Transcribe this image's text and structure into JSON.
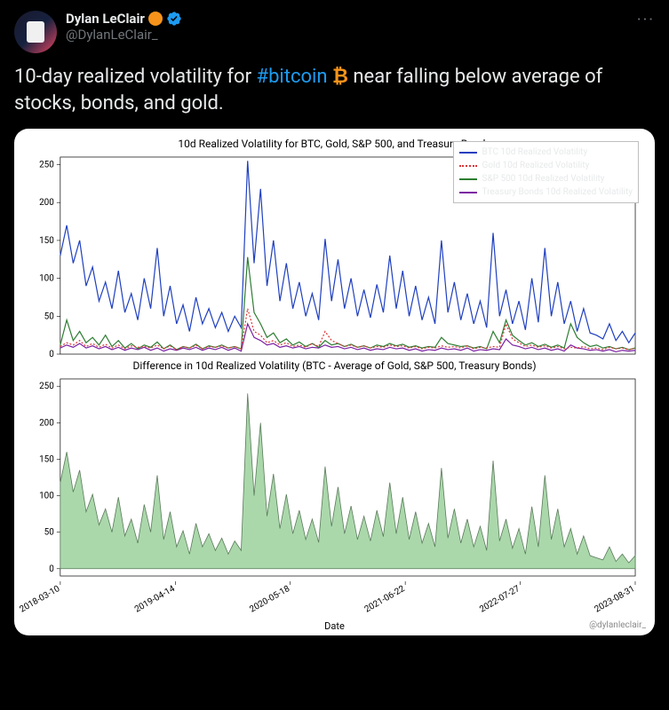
{
  "tweet": {
    "display_name": "Dylan LeClair",
    "handle": "@DylanLeClair_",
    "text_pre": "10-day realized volatility for ",
    "hashtag": "#bitcoin",
    "btc_glyph": "₿",
    "text_post": "  near falling below average of stocks, bonds, and gold.",
    "more": "···",
    "watermark": "@dylanleclair_"
  },
  "colors": {
    "background": "#000000",
    "text": "#e7e9ea",
    "muted": "#71767b",
    "link": "#1d9bf0",
    "btc_orange": "#f7931a",
    "card_bg": "#ffffff",
    "axis": "#000000"
  },
  "chart_top": {
    "type": "line",
    "title": "10d Realized Volatility for BTC, Gold, S&P 500, and Treasury Bonds",
    "ylim": [
      0,
      260
    ],
    "yticks": [
      0,
      50,
      100,
      150,
      200,
      250
    ],
    "xlabels": [
      "2018-03-10",
      "2019-04-14",
      "2020-05-18",
      "2021-06-22",
      "2022-07-27",
      "2023-08-31"
    ],
    "legend": [
      {
        "label": "BTC 10d Realized Volatility",
        "color": "#1f3fbf",
        "dash": "none"
      },
      {
        "label": "Gold 10d Realized Volatility",
        "color": "#d93636",
        "dash": "2,2"
      },
      {
        "label": "S&P 500 10d Realized Volatility",
        "color": "#2e7d32",
        "dash": "none"
      },
      {
        "label": "Treasury Bonds 10d Realized Volatility",
        "color": "#7b1fa2",
        "dash": "none"
      }
    ],
    "series": {
      "btc": {
        "color": "#1f3fbf",
        "dash": "none",
        "values": [
          130,
          170,
          120,
          150,
          90,
          115,
          70,
          95,
          60,
          110,
          55,
          80,
          45,
          100,
          60,
          140,
          50,
          90,
          40,
          65,
          30,
          75,
          40,
          60,
          35,
          55,
          30,
          50,
          35,
          255,
          120,
          218,
          90,
          150,
          70,
          120,
          60,
          95,
          50,
          80,
          45,
          152,
          70,
          125,
          60,
          100,
          50,
          85,
          48,
          92,
          55,
          130,
          60,
          110,
          50,
          90,
          45,
          75,
          40,
          150,
          55,
          95,
          45,
          80,
          40,
          70,
          35,
          160,
          50,
          85,
          40,
          70,
          32,
          100,
          42,
          140,
          50,
          95,
          40,
          70,
          30,
          60,
          28,
          25,
          20,
          40,
          18,
          30,
          15,
          28
        ]
      },
      "gold": {
        "color": "#d93636",
        "dash": "2,2",
        "values": [
          10,
          15,
          12,
          18,
          10,
          14,
          9,
          13,
          8,
          12,
          7,
          11,
          9,
          10,
          8,
          12,
          7,
          11,
          6,
          10,
          8,
          12,
          7,
          10,
          9,
          11,
          8,
          10,
          7,
          60,
          30,
          25,
          15,
          18,
          12,
          15,
          10,
          12,
          9,
          14,
          10,
          30,
          18,
          14,
          10,
          12,
          9,
          11,
          8,
          10,
          9,
          12,
          10,
          11,
          8,
          10,
          7,
          9,
          8,
          11,
          9,
          10,
          8,
          11,
          7,
          9,
          8,
          10,
          9,
          40,
          20,
          15,
          10,
          12,
          9,
          11,
          8,
          10,
          7,
          9,
          8,
          10,
          7,
          8,
          6,
          9,
          7,
          8,
          6,
          8
        ]
      },
      "sp500": {
        "color": "#2e7d32",
        "dash": "none",
        "values": [
          12,
          45,
          18,
          30,
          15,
          22,
          12,
          25,
          10,
          18,
          8,
          14,
          7,
          12,
          9,
          16,
          7,
          12,
          6,
          10,
          8,
          13,
          7,
          11,
          9,
          12,
          8,
          10,
          7,
          128,
          55,
          40,
          22,
          28,
          15,
          20,
          12,
          16,
          10,
          14,
          9,
          18,
          12,
          14,
          10,
          13,
          9,
          11,
          8,
          12,
          10,
          14,
          11,
          13,
          9,
          11,
          8,
          10,
          9,
          22,
          14,
          12,
          10,
          11,
          8,
          10,
          7,
          30,
          15,
          45,
          25,
          18,
          12,
          15,
          10,
          13,
          9,
          12,
          8,
          40,
          22,
          15,
          10,
          12,
          8,
          10,
          7,
          9,
          6,
          8
        ]
      },
      "bonds": {
        "color": "#7b1fa2",
        "dash": "none",
        "values": [
          8,
          12,
          9,
          14,
          8,
          11,
          7,
          10,
          6,
          9,
          5,
          8,
          6,
          9,
          5,
          8,
          4,
          7,
          5,
          8,
          6,
          9,
          5,
          8,
          6,
          9,
          5,
          8,
          4,
          40,
          22,
          18,
          12,
          14,
          9,
          11,
          8,
          10,
          7,
          9,
          8,
          12,
          9,
          10,
          7,
          9,
          6,
          8,
          5,
          7,
          6,
          9,
          7,
          8,
          5,
          7,
          4,
          6,
          5,
          8,
          6,
          7,
          5,
          8,
          4,
          6,
          5,
          7,
          6,
          20,
          12,
          10,
          7,
          9,
          6,
          8,
          5,
          7,
          4,
          12,
          8,
          7,
          5,
          6,
          4,
          6,
          3,
          5,
          4,
          5
        ]
      }
    }
  },
  "chart_bottom": {
    "type": "area",
    "title": "Difference in 10d Realized Volatility (BTC - Average of Gold, S&P 500, Treasury Bonds)",
    "ylim": [
      -10,
      260
    ],
    "yticks": [
      0,
      50,
      100,
      150,
      200,
      250
    ],
    "fill_color": "#a5d6a7",
    "stroke_color": "#5a7a5a",
    "xlabel": "Date",
    "values": [
      118,
      160,
      105,
      135,
      78,
      102,
      60,
      82,
      50,
      98,
      45,
      68,
      35,
      88,
      50,
      128,
      40,
      78,
      30,
      52,
      20,
      62,
      30,
      48,
      25,
      42,
      20,
      38,
      25,
      240,
      100,
      200,
      72,
      130,
      55,
      102,
      48,
      80,
      40,
      68,
      36,
      140,
      58,
      112,
      48,
      86,
      40,
      72,
      38,
      80,
      44,
      118,
      48,
      98,
      40,
      78,
      35,
      62,
      30,
      138,
      42,
      82,
      35,
      68,
      30,
      58,
      25,
      148,
      38,
      68,
      28,
      55,
      20,
      85,
      30,
      128,
      40,
      82,
      30,
      55,
      20,
      45,
      18,
      15,
      12,
      30,
      10,
      20,
      8,
      18
    ]
  }
}
